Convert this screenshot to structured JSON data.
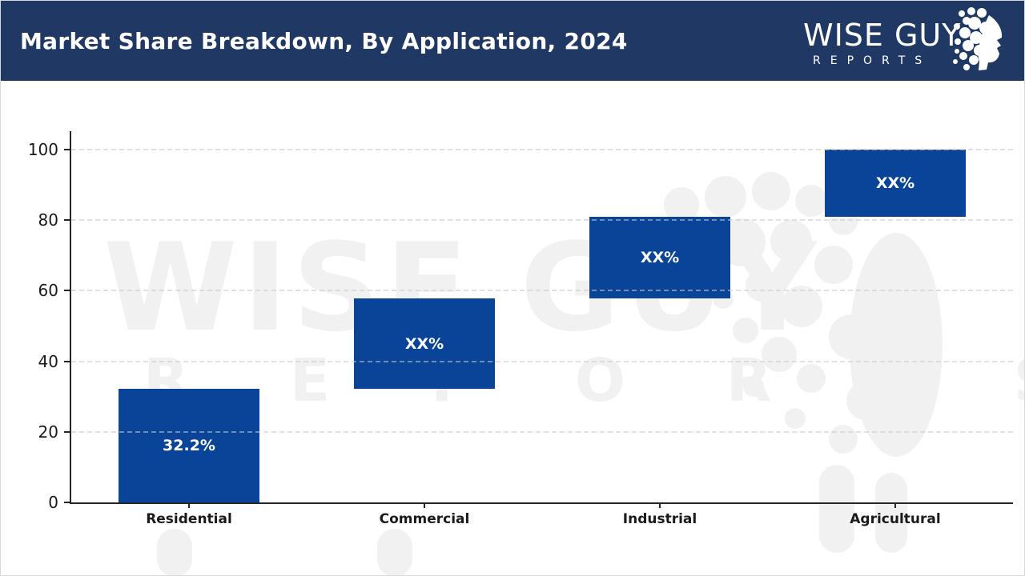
{
  "header": {
    "title": "Market Share Breakdown, By Application, 2024",
    "logo": {
      "line1": "WISE GUY",
      "line2": "REPORTS"
    },
    "background_color": "#1f3864"
  },
  "watermark": {
    "line1": "WISE GUY",
    "line2": "R E P O R T S",
    "color": "#f1f1f1"
  },
  "chart_data": {
    "type": "bar",
    "subtype": "waterfall",
    "title": "Market Share Breakdown, By Application, 2024",
    "categories": [
      "Residential",
      "Commercial",
      "Industrial",
      "Agricultural"
    ],
    "segments": [
      {
        "category": "Residential",
        "start": 0,
        "end": 32.2,
        "value": 32.2,
        "label": "32.2%"
      },
      {
        "category": "Commercial",
        "start": 32.2,
        "end": 57.8,
        "value": 25.6,
        "label": "XX%"
      },
      {
        "category": "Industrial",
        "start": 57.8,
        "end": 81.0,
        "value": 23.2,
        "label": "XX%"
      },
      {
        "category": "Agricultural",
        "start": 81.0,
        "end": 100,
        "value": 19.0,
        "label": "XX%"
      }
    ],
    "xlabel": "",
    "ylabel": "",
    "ylim": [
      0,
      100
    ],
    "yticks": [
      0,
      20,
      40,
      60,
      80,
      100
    ],
    "grid": "dashed horizontal",
    "legend": "none",
    "bar_color": "#0a4499",
    "label_color": "#ffffff",
    "background": "#ffffff"
  }
}
